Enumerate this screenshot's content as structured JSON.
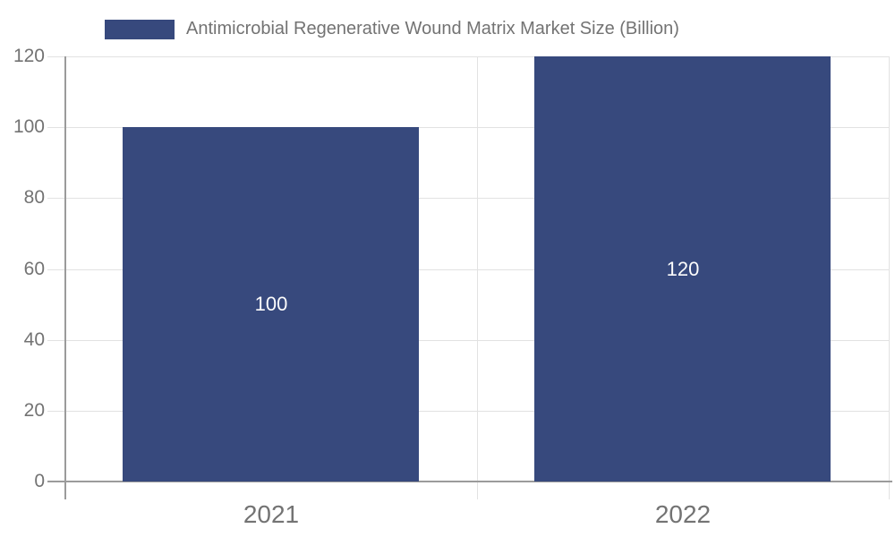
{
  "chart_data": {
    "type": "bar",
    "title": "",
    "xlabel": "",
    "ylabel": "",
    "categories": [
      "2021",
      "2022"
    ],
    "series": [
      {
        "name": "Antimicrobial Regenerative Wound Matrix Market Size (Billion)",
        "values": [
          100,
          120
        ]
      }
    ],
    "value_labels": [
      "100",
      "120"
    ],
    "ylim": [
      0,
      120
    ],
    "yticks": [
      0,
      20,
      40,
      60,
      80,
      100,
      120
    ],
    "grid": true,
    "legend_position": "top-left"
  },
  "colors": {
    "bar": "#37497d",
    "axis_text": "#737373",
    "value_label_text": "#fcfcfc",
    "gridline": "#e2e2e2",
    "axis_line": "#9b9b9b",
    "background": "#ffffff"
  }
}
